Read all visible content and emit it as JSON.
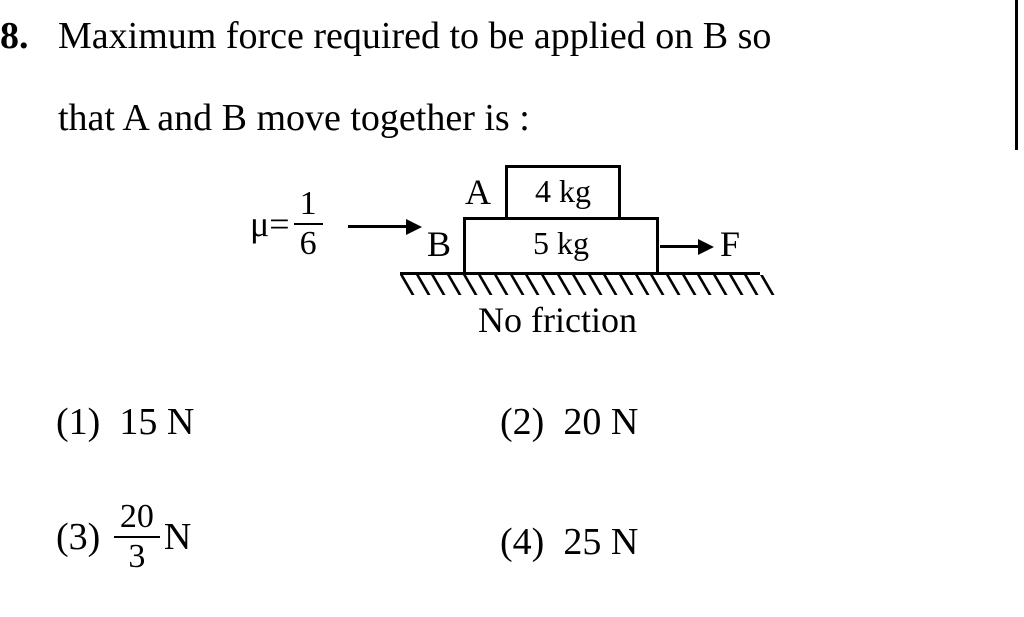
{
  "question": {
    "number": "8.",
    "line1": "Maximum force required to be applied on B so",
    "line2": "that A and B move together is :"
  },
  "diagram": {
    "mu_symbol": "μ=",
    "mu_num": "1",
    "mu_den": "6",
    "block_A": {
      "label": "A",
      "mass_text": "4 kg"
    },
    "block_B": {
      "label": "B",
      "mass_text": "5 kg"
    },
    "force_label": "F",
    "ground_caption": "No friction",
    "ground_hatches": 24,
    "colors": {
      "stroke": "#000000",
      "background": "#ffffff"
    }
  },
  "options": {
    "o1": {
      "marker": "(1)",
      "text": "15 N"
    },
    "o2": {
      "marker": "(2)",
      "text": "20 N"
    },
    "o3": {
      "marker": "(3)",
      "num": "20",
      "den": "3",
      "unit": " N"
    },
    "o4": {
      "marker": "(4)",
      "text": "25 N"
    }
  }
}
